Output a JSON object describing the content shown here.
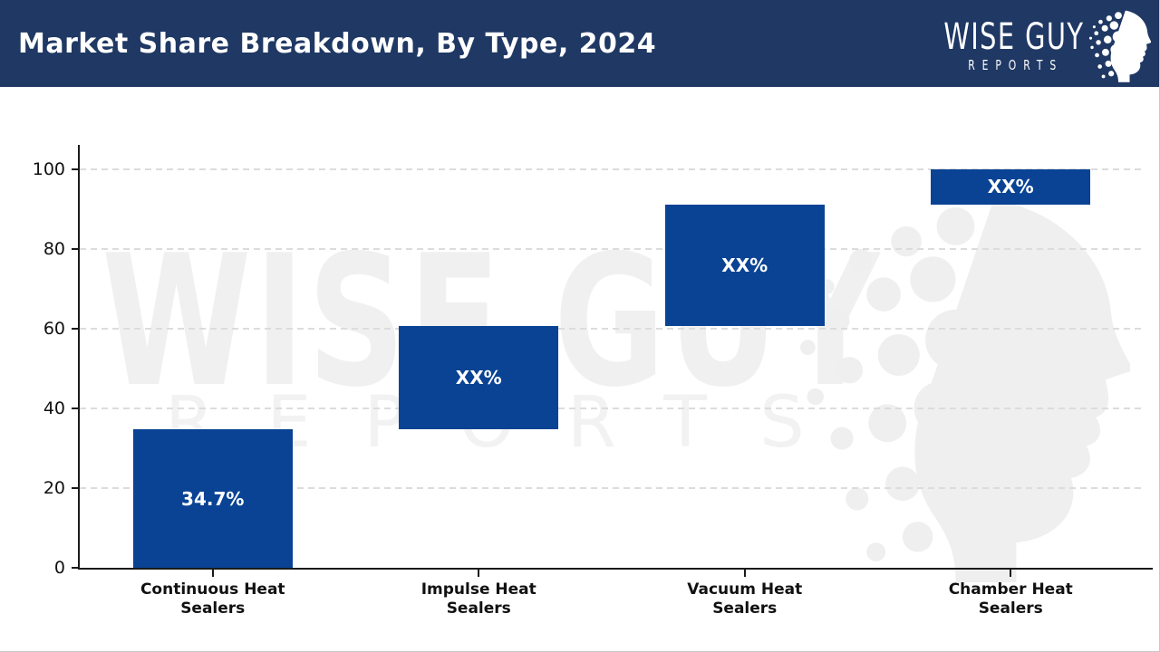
{
  "header": {
    "title": "Market Share Breakdown, By Type, 2024",
    "logo": {
      "line1": "WISE GUY",
      "line2": "REPORTS"
    }
  },
  "watermark": {
    "line1": "WISE GUY",
    "line2": "REPORTS"
  },
  "colors": {
    "header_background": "#1f3864",
    "bar": "#0a4394",
    "bar_label": "#ffffff",
    "gridline": "#dcdcdc",
    "axis": "#1a1a1a"
  },
  "chart_data": {
    "type": "bar",
    "variant": "waterfall",
    "title": "Market Share Breakdown, By Type, 2024",
    "xlabel": "",
    "ylabel": "",
    "ylim": [
      0,
      106
    ],
    "yticks": [
      0,
      20,
      40,
      60,
      80,
      100
    ],
    "grid": "horizontal-dashed",
    "legend": "none",
    "bar_color": "#0a4394",
    "categories": [
      "Continuous Heat Sealers",
      "Impulse Heat Sealers",
      "Vacuum Heat Sealers",
      "Chamber Heat Sealers"
    ],
    "category_lines": [
      [
        "Continuous Heat",
        "Sealers"
      ],
      [
        "Impulse Heat",
        "Sealers"
      ],
      [
        "Vacuum Heat",
        "Sealers"
      ],
      [
        "Chamber Heat",
        "Sealers"
      ]
    ],
    "segments": [
      {
        "category": "Continuous Heat Sealers",
        "start": 0,
        "end": 34.7,
        "value": 34.7,
        "value_label": "34.7%"
      },
      {
        "category": "Impulse Heat Sealers",
        "start": 34.7,
        "end": 60.7,
        "value": 26.0,
        "value_label": "XX%"
      },
      {
        "category": "Vacuum Heat Sealers",
        "start": 60.7,
        "end": 91.2,
        "value": 30.5,
        "value_label": "XX%"
      },
      {
        "category": "Chamber Heat Sealers",
        "start": 91.2,
        "end": 100,
        "value": 8.8,
        "value_label": "XX%"
      }
    ]
  }
}
